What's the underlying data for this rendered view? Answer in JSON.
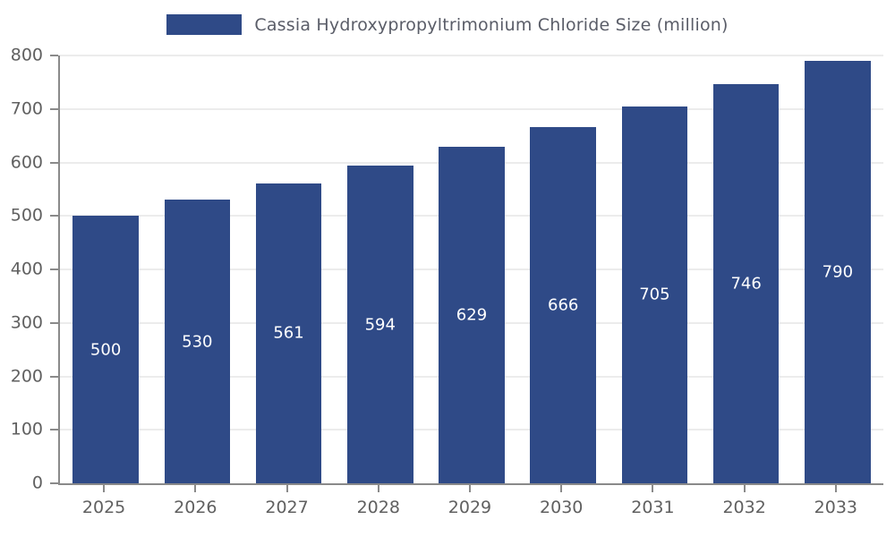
{
  "legend": {
    "label": "Cassia Hydroxypropyltrimonium Chloride Size (million)"
  },
  "colors": {
    "bar": "#2f4a87",
    "grid": "#d9d9d9",
    "axis": "#8a8a8a",
    "tick_text": "#606060",
    "value_text": "#ffffff"
  },
  "chart_data": {
    "type": "bar",
    "title": "Cassia Hydroxypropyltrimonium Chloride Size (million)",
    "categories": [
      "2025",
      "2026",
      "2027",
      "2028",
      "2029",
      "2030",
      "2031",
      "2032",
      "2033"
    ],
    "values": [
      500,
      530,
      561,
      594,
      629,
      666,
      705,
      746,
      790
    ],
    "xlabel": "",
    "ylabel": "",
    "ylim": [
      0,
      800
    ],
    "yticks": [
      0,
      100,
      200,
      300,
      400,
      500,
      600,
      700,
      800
    ],
    "grid": true,
    "legend_position": "top",
    "value_labels": "inside-center"
  }
}
